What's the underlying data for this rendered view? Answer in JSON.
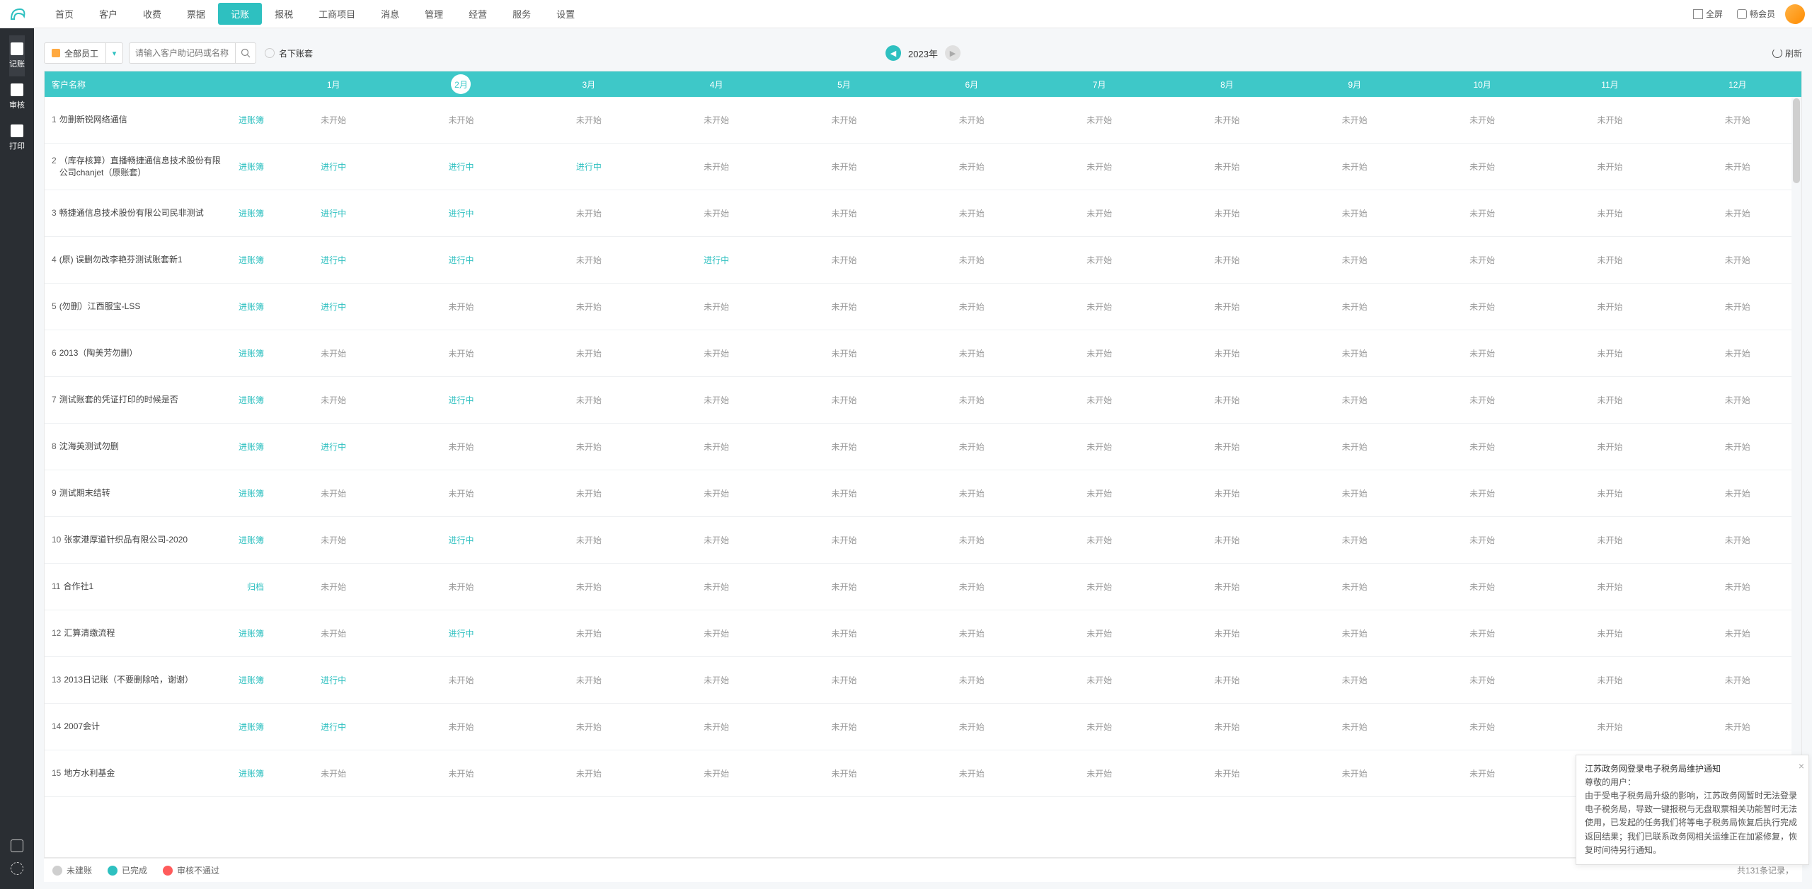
{
  "colors": {
    "primary": "#2ec0c0",
    "header": "#3ec8c8",
    "sidebar": "#2a2e33",
    "bg": "#f5f7f9"
  },
  "topnav": {
    "items": [
      "首页",
      "客户",
      "收费",
      "票据",
      "记账",
      "报税",
      "工商项目",
      "消息",
      "管理",
      "经营",
      "服务",
      "设置"
    ],
    "active_index": 4
  },
  "topbar_right": {
    "fullscreen": "全屏",
    "vip": "畅会员"
  },
  "sidebar": {
    "items": [
      {
        "label": "记账"
      },
      {
        "label": "审核"
      },
      {
        "label": "打印"
      }
    ],
    "active_index": 0
  },
  "toolbar": {
    "employee_select": "全部员工",
    "search_placeholder": "请输入客户助记码或名称",
    "checkbox_label": "名下账套",
    "year": "2023年",
    "refresh": "刷新"
  },
  "table": {
    "header_name": "客户名称",
    "months": [
      "1月",
      "2月",
      "3月",
      "4月",
      "5月",
      "6月",
      "7月",
      "8月",
      "9月",
      "10月",
      "11月",
      "12月"
    ],
    "active_month_index": 1,
    "ledger_link": "进账簿",
    "archive_link": "归档",
    "status_not_started": "未开始",
    "status_in_progress": "进行中",
    "rows": [
      {
        "idx": "1",
        "name": "勿删新锐网络通信",
        "link": "ledger",
        "cells": [
          "ns",
          "ns",
          "ns",
          "ns",
          "ns",
          "ns",
          "ns",
          "ns",
          "ns",
          "ns",
          "ns",
          "ns"
        ]
      },
      {
        "idx": "2",
        "name": "（库存核算）直播畅捷通信息技术股份有限公司chanjet（原账套）",
        "link": "ledger",
        "cells": [
          "ip",
          "ip",
          "ip",
          "ns",
          "ns",
          "ns",
          "ns",
          "ns",
          "ns",
          "ns",
          "ns",
          "ns"
        ]
      },
      {
        "idx": "3",
        "name": "畅捷通信息技术股份有限公司民非测试",
        "link": "ledger",
        "cells": [
          "ip",
          "ip",
          "ns",
          "ns",
          "ns",
          "ns",
          "ns",
          "ns",
          "ns",
          "ns",
          "ns",
          "ns"
        ]
      },
      {
        "idx": "4",
        "name": "(原) 误删勿改李艳芬测试账套新1",
        "link": "ledger",
        "cells": [
          "ip",
          "ip",
          "ns",
          "ip",
          "ns",
          "ns",
          "ns",
          "ns",
          "ns",
          "ns",
          "ns",
          "ns"
        ]
      },
      {
        "idx": "5",
        "name": "(勿删）江西服宝-LSS",
        "link": "ledger",
        "cells": [
          "ip",
          "ns",
          "ns",
          "ns",
          "ns",
          "ns",
          "ns",
          "ns",
          "ns",
          "ns",
          "ns",
          "ns"
        ]
      },
      {
        "idx": "6",
        "name": "2013（陶美芳勿删）",
        "link": "ledger",
        "cells": [
          "ns",
          "ns",
          "ns",
          "ns",
          "ns",
          "ns",
          "ns",
          "ns",
          "ns",
          "ns",
          "ns",
          "ns"
        ]
      },
      {
        "idx": "7",
        "name": "测试账套的凭证打印的时候是否",
        "link": "ledger",
        "cells": [
          "ns",
          "ip",
          "ns",
          "ns",
          "ns",
          "ns",
          "ns",
          "ns",
          "ns",
          "ns",
          "ns",
          "ns"
        ]
      },
      {
        "idx": "8",
        "name": "沈海英测试勿删",
        "link": "ledger",
        "cells": [
          "ip",
          "ns",
          "ns",
          "ns",
          "ns",
          "ns",
          "ns",
          "ns",
          "ns",
          "ns",
          "ns",
          "ns"
        ]
      },
      {
        "idx": "9",
        "name": "测试期末结转",
        "link": "ledger",
        "cells": [
          "ns",
          "ns",
          "ns",
          "ns",
          "ns",
          "ns",
          "ns",
          "ns",
          "ns",
          "ns",
          "ns",
          "ns"
        ]
      },
      {
        "idx": "10",
        "name": "张家港厚道针织品有限公司-2020",
        "link": "ledger",
        "cells": [
          "ns",
          "ip",
          "ns",
          "ns",
          "ns",
          "ns",
          "ns",
          "ns",
          "ns",
          "ns",
          "ns",
          "ns"
        ]
      },
      {
        "idx": "11",
        "name": "合作社1",
        "link": "archive",
        "cells": [
          "ns",
          "ns",
          "ns",
          "ns",
          "ns",
          "ns",
          "ns",
          "ns",
          "ns",
          "ns",
          "ns",
          "ns"
        ]
      },
      {
        "idx": "12",
        "name": "汇算清缴流程",
        "link": "ledger",
        "cells": [
          "ns",
          "ip",
          "ns",
          "ns",
          "ns",
          "ns",
          "ns",
          "ns",
          "ns",
          "ns",
          "ns",
          "ns"
        ]
      },
      {
        "idx": "13",
        "name": "2013日记账（不要删除哈，谢谢）",
        "link": "ledger",
        "cells": [
          "ip",
          "ns",
          "ns",
          "ns",
          "ns",
          "ns",
          "ns",
          "ns",
          "ns",
          "ns",
          "ns",
          "ns"
        ]
      },
      {
        "idx": "14",
        "name": "2007会计",
        "link": "ledger",
        "cells": [
          "ip",
          "ns",
          "ns",
          "ns",
          "ns",
          "ns",
          "ns",
          "ns",
          "ns",
          "ns",
          "ns",
          "ns"
        ]
      },
      {
        "idx": "15",
        "name": "地方水利基金",
        "link": "ledger",
        "cells": [
          "ns",
          "ns",
          "ns",
          "ns",
          "ns",
          "ns",
          "ns",
          "ns",
          "ns",
          "ns",
          "ns",
          "ns"
        ]
      }
    ]
  },
  "legend": {
    "not_built": "未建账",
    "completed": "已完成",
    "audit_fail": "审核不通过",
    "count": "共131条记录，"
  },
  "notice": {
    "title": "江苏政务网登录电子税务局维护通知",
    "greeting": "尊敬的用户：",
    "body": "由于受电子税务局升级的影响，江苏政务网暂时无法登录电子税务局，导致一键报税与无盘取票相关功能暂时无法使用，已发起的任务我们将等电子税务局恢复后执行完成返回结果；我们已联系政务网相关运维正在加紧修复，恢复时间待另行通知。"
  }
}
